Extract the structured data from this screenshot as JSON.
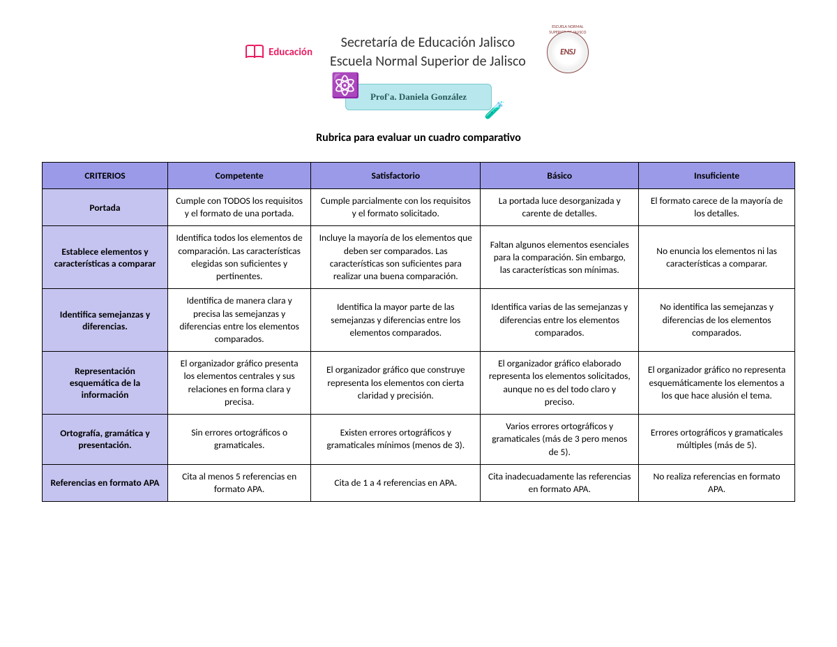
{
  "header": {
    "edu_label": "Educación",
    "title_line1": "Secretaría de Educación Jalisco",
    "title_line2": "Escuela Normal Superior de Jalisco",
    "ensj_label": "ENSJ",
    "ensj_arc": "ESCUELA NORMAL SUPERIOR DE JALISCO",
    "professor": "Prof'a. Daniela González"
  },
  "rubric_title": "Rubrica para evaluar un cuadro comparativo",
  "colors": {
    "header_bg": "#9b9ae8",
    "criteria_bg": "#c5c4f0",
    "cell_bg": "#ffffff",
    "border": "#000000",
    "edu_accent": "#e91e63",
    "banner_bg": "#b8e8ed"
  },
  "columns": [
    "CRITERIOS",
    "Competente",
    "Satisfactorio",
    "Básico",
    "Insuficiente"
  ],
  "rows": [
    {
      "criterion": "Portada",
      "cells": [
        "Cumple con TODOS los requisitos y el formato de una portada.",
        "Cumple parcialmente con los requisitos y el formato solicitado.",
        "La portada luce desorganizada y carente de detalles.",
        "El formato carece de la mayoría de los detalles."
      ]
    },
    {
      "criterion": "Establece elementos y características a comparar",
      "cells": [
        "Identifica todos los elementos de comparación. Las características elegidas son suficientes y pertinentes.",
        "Incluye la mayoría de los elementos que deben ser comparados. Las características son suficientes para realizar una buena comparación.",
        "Faltan algunos elementos esenciales para la comparación. Sin embargo, las características son mínimas.",
        "No enuncia los elementos ni las características a comparar."
      ]
    },
    {
      "criterion": "Identifica semejanzas y diferencias.",
      "cells": [
        "Identifica de manera clara y precisa las semejanzas y diferencias entre los elementos comparados.",
        "Identifica la mayor parte de las semejanzas y diferencias entre los elementos comparados.",
        "Identifica varias de las semejanzas y diferencias entre los elementos comparados.",
        "No identifica las semejanzas y diferencias de los elementos comparados."
      ]
    },
    {
      "criterion": "Representación esquemática de la información",
      "cells": [
        "El organizador gráfico presenta los elementos centrales y sus relaciones en forma clara y precisa.",
        "El organizador gráfico que construye representa los elementos con cierta claridad y precisión.",
        "El organizador gráfico elaborado representa los elementos solicitados, aunque no es del todo claro y preciso.",
        "El organizador gráfico no representa esquemáticamente los elementos a los que hace alusión el tema."
      ]
    },
    {
      "criterion": "Ortografía, gramática y presentación.",
      "cells": [
        "Sin errores ortográficos o gramaticales.",
        "Existen errores ortográficos y gramaticales mínimos (menos de 3).",
        "Varios errores ortográficos y gramaticales (más de 3 pero menos de 5).",
        "Errores ortográficos y gramaticales múltiples (más de 5)."
      ]
    },
    {
      "criterion": "Referencias en formato APA",
      "cells": [
        "Cita al menos 5 referencias en formato APA.",
        "Cita de 1 a 4 referencias en APA.",
        "Cita inadecuadamente las referencias en formato APA.",
        "No realiza referencias en formato APA."
      ]
    }
  ]
}
